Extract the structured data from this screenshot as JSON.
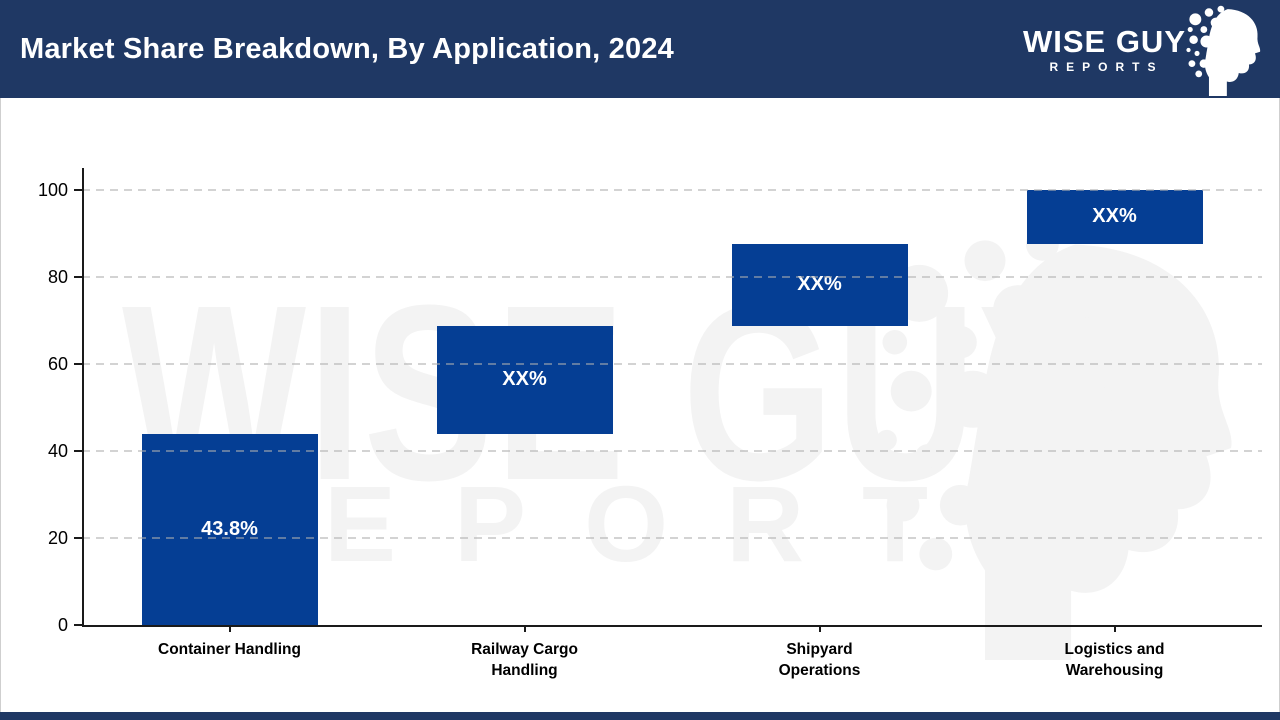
{
  "header": {
    "title": "Market Share Breakdown, By Application, 2024",
    "bg_color": "#1F3864",
    "logo": {
      "line1": "WISE GUY",
      "line2": "REPORTS"
    }
  },
  "watermark": {
    "line1": "WISE GUY",
    "line2": "REPORTS",
    "color": "#f3f3f3"
  },
  "footer": {
    "bg_color": "#1F3864"
  },
  "chart_data": {
    "type": "bar",
    "subtype": "waterfall",
    "title": "Market Share Breakdown, By Application, 2024",
    "categories": [
      "Container Handling",
      "Railway Cargo\nHandling",
      "Shipyard\nOperations",
      "Logistics and\nWarehousing"
    ],
    "bars": [
      {
        "category": "Container Handling",
        "start": 0,
        "end": 43.8,
        "label": "43.8%"
      },
      {
        "category": "Railway Cargo Handling",
        "start": 43.8,
        "end": 68.8,
        "label": "XX%"
      },
      {
        "category": "Shipyard Operations",
        "start": 68.8,
        "end": 87.5,
        "label": "XX%"
      },
      {
        "category": "Logistics and Warehousing",
        "start": 87.5,
        "end": 100,
        "label": "XX%"
      }
    ],
    "yticks": [
      0,
      20,
      40,
      60,
      80,
      100
    ],
    "ylim": [
      0,
      105
    ],
    "xlabel": "",
    "ylabel": "",
    "bar_color": "#053E94",
    "grid": "horizontal-dashed",
    "legend": "none"
  }
}
